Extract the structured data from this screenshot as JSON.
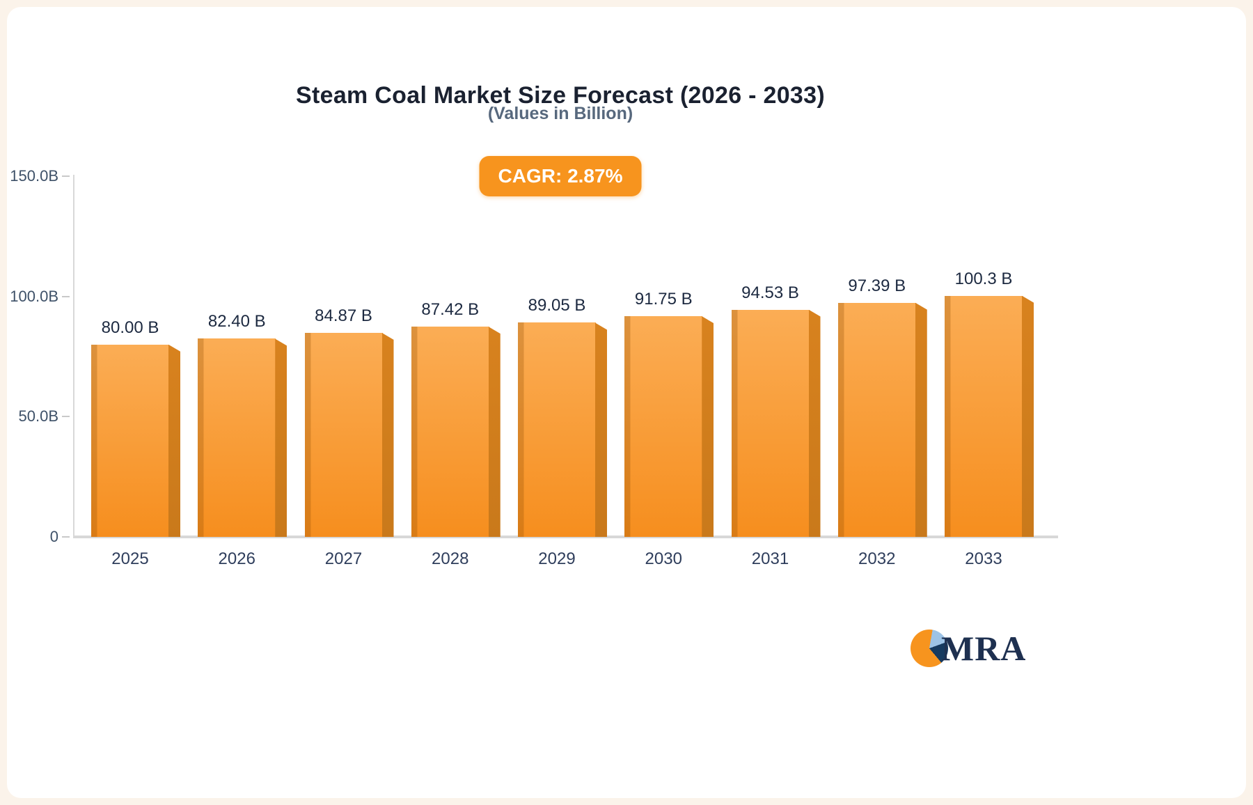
{
  "chart_data": {
    "type": "bar",
    "title": "Steam Coal Market Size Forecast (2026 - 2033)",
    "subtitle": "(Values in Billion)",
    "annotation": "CAGR: 2.87%",
    "categories": [
      "2025",
      "2026",
      "2027",
      "2028",
      "2029",
      "2030",
      "2031",
      "2032",
      "2033"
    ],
    "values": [
      80.0,
      82.4,
      84.87,
      87.42,
      89.05,
      91.75,
      94.53,
      97.39,
      100.3
    ],
    "value_labels": [
      "80.00 B",
      "82.40 B",
      "84.87 B",
      "87.42 B",
      "89.05 B",
      "91.75 B",
      "94.53 B",
      "97.39 B",
      "100.3 B"
    ],
    "xlabel": "",
    "ylabel": "",
    "ylim": [
      0,
      150
    ],
    "yticks": [
      {
        "value": 150,
        "label": "150.0B"
      },
      {
        "value": 100,
        "label": "100.0B"
      },
      {
        "value": 50,
        "label": "50.0B"
      },
      {
        "value": 0,
        "label": "0"
      }
    ],
    "grid": "off",
    "legend": "none",
    "colors": {
      "accent": "#F7941E",
      "bar_top": "#FBAD55",
      "bar_bottom": "#F68E1E",
      "bar_side": "#C9791B",
      "title_text": "#1A2130",
      "subtitle_text": "#57687D",
      "axis_text": "#3E5168",
      "category_text": "#2F3E5C",
      "value_text": "#1C2940",
      "axis_line": "#D8D8D8",
      "logo_navy": "#1E3050",
      "logo_blue": "#9DC3E6"
    }
  },
  "logo": {
    "text": "MRA"
  }
}
